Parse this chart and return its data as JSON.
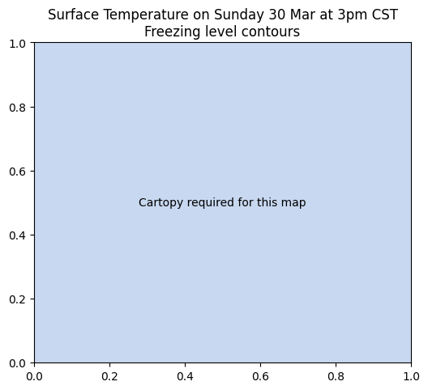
{
  "title": "Surface Temperature on Sunday 30 Mar at 3pm CST",
  "subtitle": "Freezing level contours",
  "title_fontsize": 13,
  "subtitle_fontsize": 10,
  "lon_min": -120,
  "lon_max": -55,
  "lat_min": 3,
  "lat_max": 35,
  "ocean_color": "#c8d8f0",
  "background_color": "#ffffff",
  "contour_color": "#cc0000",
  "contour_linewidth": 1.2,
  "border_color": "#000000",
  "grid_color": "#aaaacc",
  "grid_linewidth": 0.4
}
